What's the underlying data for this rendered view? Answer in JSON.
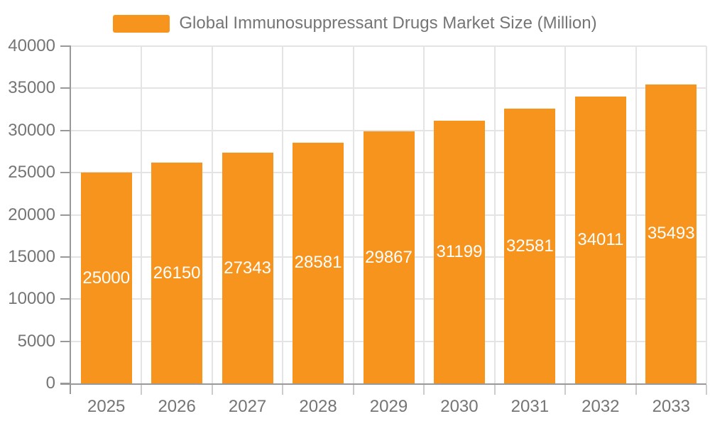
{
  "theme": {
    "background": "#FFFFFF",
    "bar_color": "#F7941E",
    "grid_color": "#E4E4E4",
    "axis_color": "#999999",
    "tick_color": "#CCCCCC",
    "label_color": "#757575",
    "value_label_color": "#FFFFFF"
  },
  "legend": {
    "label": "Global Immunosuppressant Drugs Market Size (Million)"
  },
  "chart_data": {
    "type": "bar",
    "title": "Global Immunosuppressant Drugs Market Size (Million)",
    "categories": [
      "2025",
      "2026",
      "2027",
      "2028",
      "2029",
      "2030",
      "2031",
      "2032",
      "2033"
    ],
    "values": [
      25000,
      26150,
      27343,
      28581,
      29867,
      31199,
      32581,
      34011,
      35493
    ],
    "xlabel": "",
    "ylabel": "",
    "ylim": [
      0,
      40000
    ],
    "yticks": [
      0,
      5000,
      10000,
      15000,
      20000,
      25000,
      30000,
      35000,
      40000
    ],
    "ytick_interval": 5000,
    "grid": true,
    "legend_position": "top",
    "value_labels": "inside-middle"
  }
}
